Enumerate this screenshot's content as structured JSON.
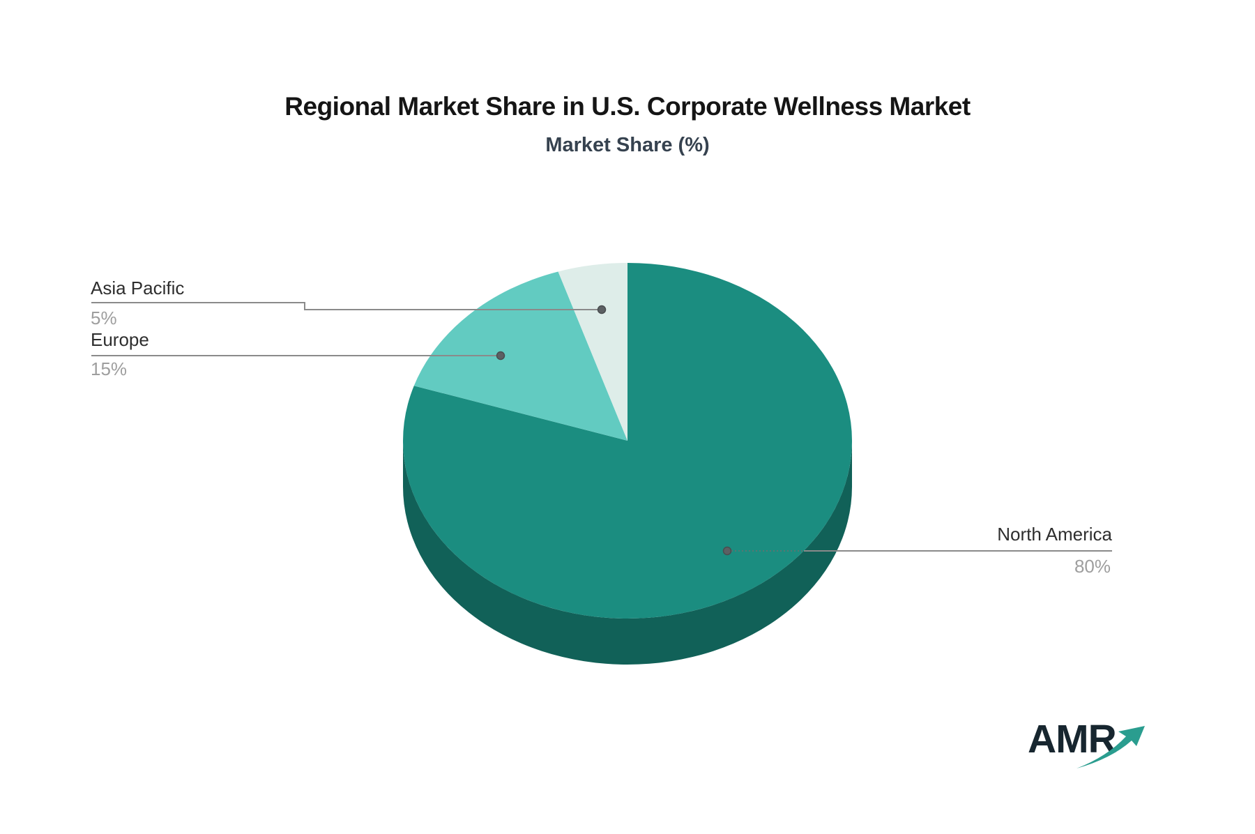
{
  "title": "Regional Market Share in U.S. Corporate Wellness Market",
  "subtitle": "Market Share (%)",
  "chart_data": {
    "type": "pie",
    "title": "Regional Market Share in U.S. Corporate Wellness Market",
    "subtitle": "Market Share (%)",
    "unit": "%",
    "start_angle": "12 o'clock, clockwise",
    "effect": "3d-depth",
    "legend_position": "callout-labels",
    "segments": [
      {
        "label": "North America",
        "value": 80,
        "display": "80%",
        "color": "#1B8D80",
        "side_color": "#116158"
      },
      {
        "label": "Europe",
        "value": 15,
        "display": "15%",
        "color": "#62CBC1"
      },
      {
        "label": "Asia Pacific",
        "value": 5,
        "display": "5%",
        "color": "#DEEDE9"
      }
    ]
  },
  "callouts": {
    "asia_pacific": {
      "name": "Asia Pacific",
      "pct": "5%"
    },
    "europe": {
      "name": "Europe",
      "pct": "15%"
    },
    "north_america": {
      "name": "North America",
      "pct": "80%"
    }
  },
  "colors": {
    "leader_line": "#8a8a8a",
    "leader_dot": "#5c6063",
    "title_text": "#151515",
    "subtitle_text": "#36424F",
    "label_text": "#2e2e2e",
    "pct_text": "#9E9E9E",
    "logo_text": "#17262F",
    "logo_arrow": "#2a9d8f"
  },
  "logo": {
    "text": "AMR"
  }
}
